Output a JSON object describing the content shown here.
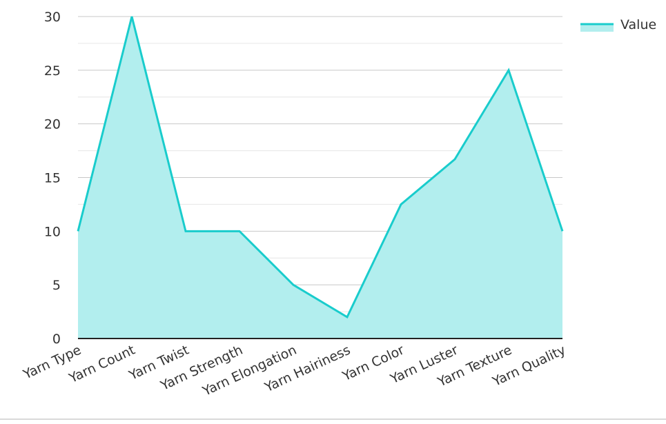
{
  "chart_data": {
    "type": "area",
    "title": "",
    "xlabel": "",
    "ylabel": "",
    "categories": [
      "Yarn Type",
      "Yarn Count",
      "Yarn Twist",
      "Yarn Strength",
      "Yarn Elongation",
      "Yarn Hairiness",
      "Yarn Color",
      "Yarn Luster",
      "Yarn Texture",
      "Yarn Quality"
    ],
    "series": [
      {
        "name": "Value",
        "values": [
          10,
          30,
          10,
          10,
          5,
          2,
          12.5,
          16.7,
          25,
          10
        ],
        "color": "#19cccc",
        "fill_color": "#b2eeee"
      }
    ],
    "ylim": [
      0,
      30
    ],
    "yticks": [
      0,
      5,
      10,
      15,
      20,
      25,
      30
    ],
    "grid": true,
    "legend_position": "top-right"
  }
}
